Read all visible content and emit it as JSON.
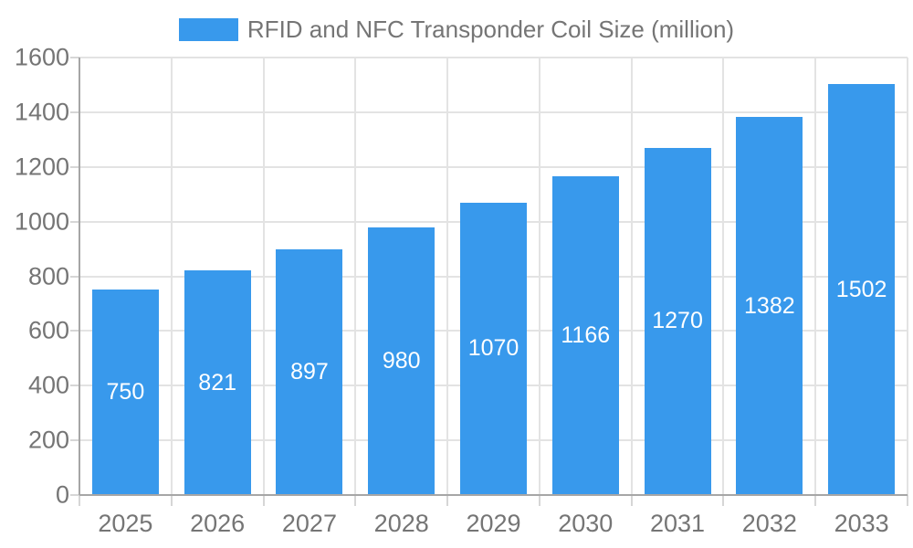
{
  "chart_data": {
    "type": "bar",
    "title": "",
    "legend": {
      "label": "RFID and NFC Transponder Coil Size (million)",
      "position": "top"
    },
    "categories": [
      "2025",
      "2026",
      "2027",
      "2028",
      "2029",
      "2030",
      "2031",
      "2032",
      "2033"
    ],
    "values": [
      750,
      821,
      897,
      980,
      1070,
      1166,
      1270,
      1382,
      1502
    ],
    "xlabel": "",
    "ylabel": "",
    "ylim": [
      0,
      1600
    ],
    "yticks": [
      0,
      200,
      400,
      600,
      800,
      1000,
      1200,
      1400,
      1600
    ],
    "grid": true,
    "colors": {
      "bar": "#3899EC",
      "bar_value_text": "#ffffff",
      "axis_text": "#757575",
      "gridline": "#e3e3e3",
      "axis_line": "#a6a6a6",
      "tick": "#d6d6d6"
    }
  }
}
